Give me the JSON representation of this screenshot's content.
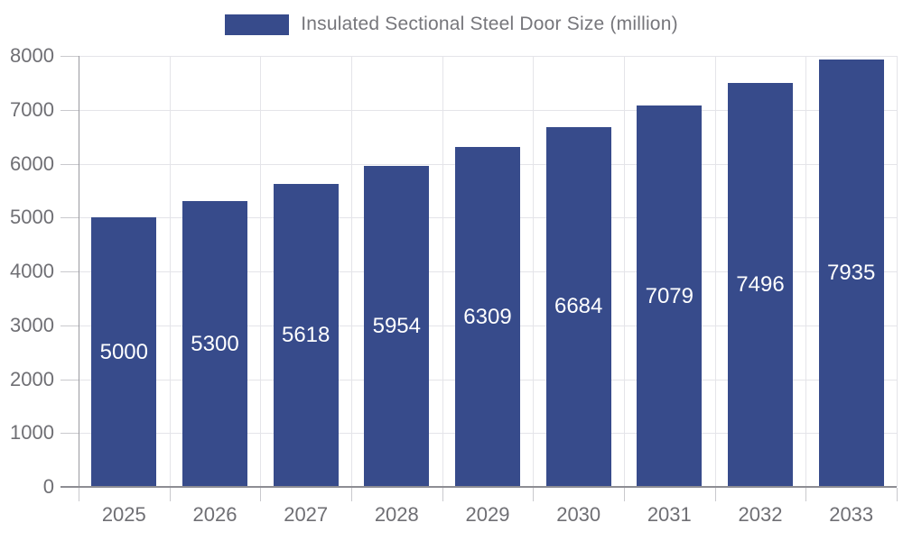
{
  "chart_data": {
    "type": "bar",
    "title": "Insulated Sectional Steel Door Size (million)",
    "categories": [
      "2025",
      "2026",
      "2027",
      "2028",
      "2029",
      "2030",
      "2031",
      "2032",
      "2033"
    ],
    "values": [
      5000,
      5300,
      5618,
      5954,
      6309,
      6684,
      7079,
      7496,
      7935
    ],
    "xlabel": "",
    "ylabel": "",
    "ylim": [
      0,
      8000
    ],
    "ytick_interval": 1000,
    "grid": true,
    "legend_position": "top-center",
    "value_labels": "inside-middle"
  },
  "colors": {
    "bar": "#374b8b",
    "bar_label": "#ffffff",
    "grid": "#e4e4e9",
    "axis": "#8d8d93",
    "y_axis": "#9a9aa0",
    "tick": "#c9c9cd",
    "tick_label": "#6f6f74",
    "legend_text": "#76767b",
    "bg": "#ffffff"
  }
}
